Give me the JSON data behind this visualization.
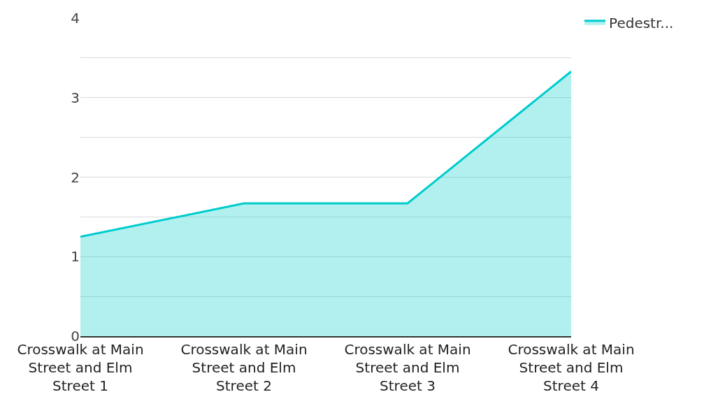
{
  "chart_data": {
    "type": "area",
    "categories": [
      "Crosswalk at Main Street and Elm Street 1",
      "Crosswalk at Main Street and Elm Street 2",
      "Crosswalk at Main Street and Elm Street 3",
      "Crosswalk at Main Street and Elm Street 4"
    ],
    "series": [
      {
        "name": "Pedestr...",
        "color": "#00cccc",
        "values": [
          1.25,
          1.67,
          1.67,
          3.33
        ]
      }
    ],
    "ylim": [
      0,
      4
    ],
    "yticks": [
      0,
      {
        "value": 0.5,
        "label": null
      },
      1,
      {
        "value": 1.5,
        "label": null
      },
      2,
      {
        "value": 2.5,
        "label": null
      },
      3,
      {
        "value": 3.5,
        "label": null
      },
      4
    ],
    "grid": "y",
    "legend": "top right"
  }
}
